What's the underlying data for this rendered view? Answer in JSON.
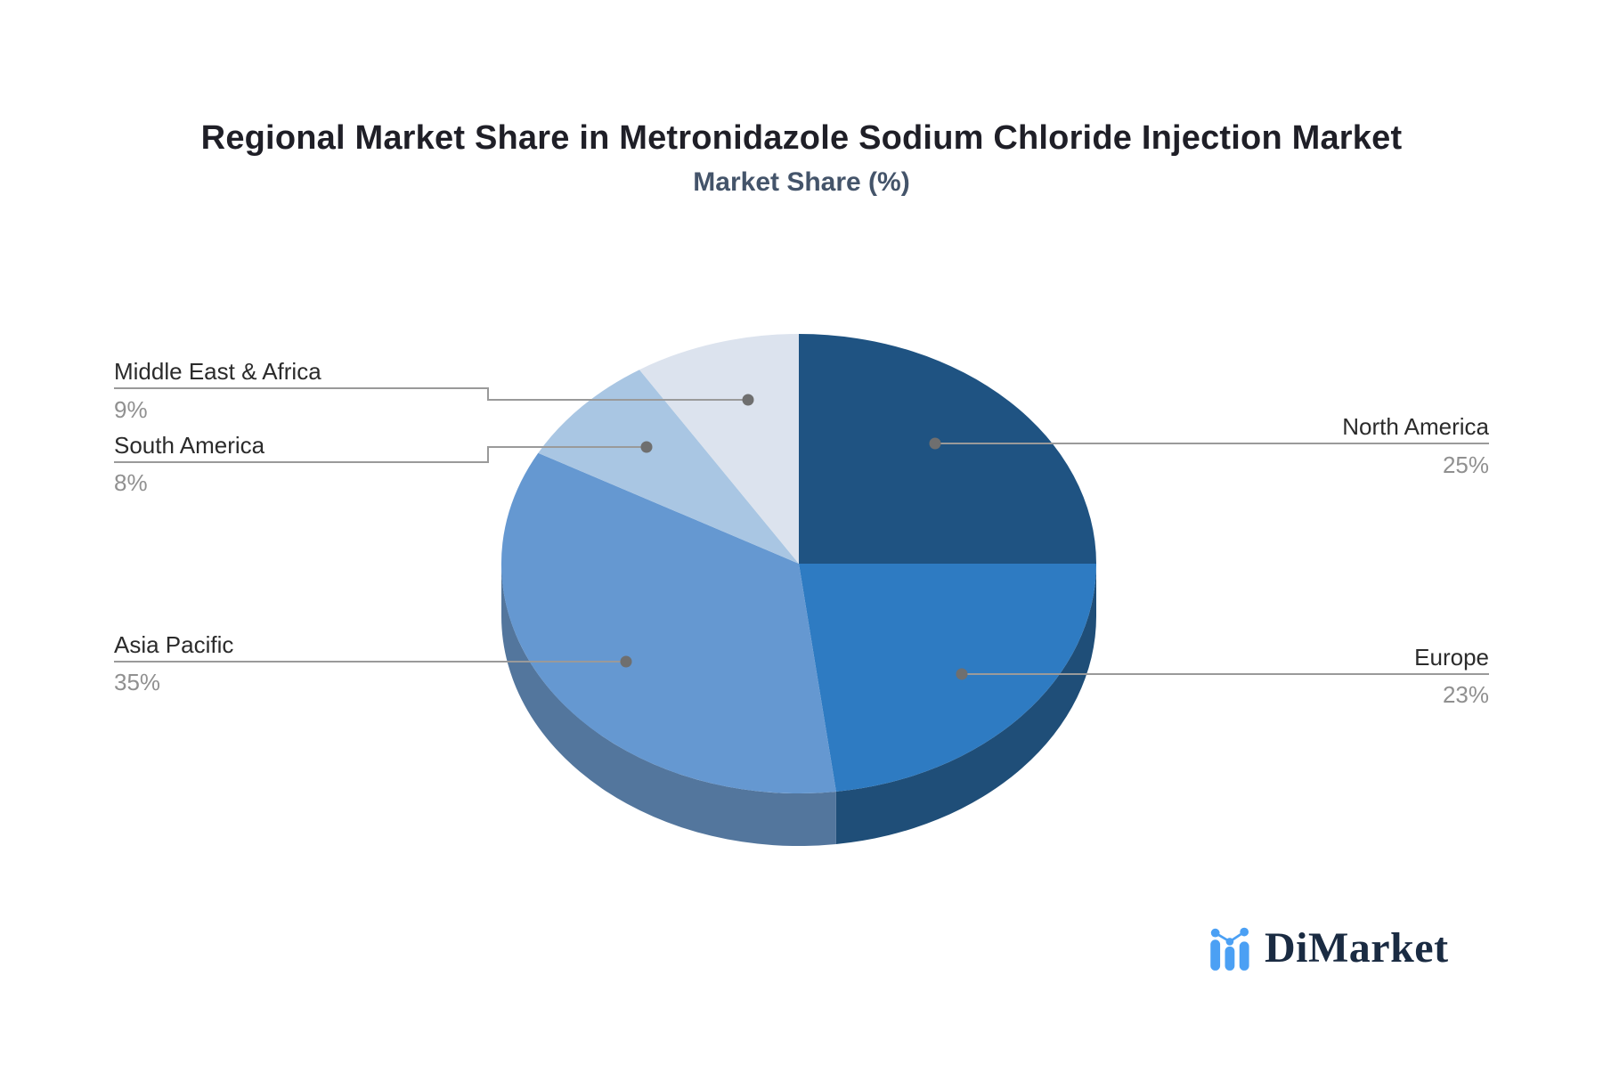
{
  "header": {
    "title": "Regional Market Share in Metronidazole Sodium Chloride Injection Market",
    "subtitle": "Market Share (%)"
  },
  "chart_data": {
    "type": "pie",
    "style": "3d",
    "direction": "clockwise",
    "start_angle_deg": 0,
    "unit": "%",
    "title": "Regional Market Share in Metronidazole Sodium Chloride Injection Market",
    "subtitle": "Market Share (%)",
    "slices": [
      {
        "label": "North America",
        "value": 25,
        "pct_label": "25%",
        "color": "#1F5382",
        "depth_color": null,
        "label_side": "right"
      },
      {
        "label": "Europe",
        "value": 23,
        "pct_label": "23%",
        "color": "#2E7BC2",
        "depth_color": "#1F4E78",
        "label_side": "right"
      },
      {
        "label": "Asia Pacific",
        "value": 35,
        "pct_label": "35%",
        "color": "#6598D1",
        "depth_color": "#53769D",
        "label_side": "left"
      },
      {
        "label": "South America",
        "value": 8,
        "pct_label": "8%",
        "color": "#A9C6E3",
        "depth_color": null,
        "label_side": "left"
      },
      {
        "label": "Middle East & Africa",
        "value": 9,
        "pct_label": "9%",
        "color": "#DCE3EE",
        "depth_color": null,
        "label_side": "left"
      }
    ],
    "legend_position": "callout-labels",
    "grid": false
  },
  "colors": {
    "background": "#FFFFFF",
    "title_text": "#1F1F27",
    "subtitle_text": "#44546A",
    "label_text": "#2B2B2B",
    "pct_text": "#909090",
    "leader_line": "#9A9A9A",
    "leader_dot": "#6F6F6F"
  },
  "logo": {
    "text": "DiMarket",
    "icon": "bar-line-chart-icon",
    "text_color": "#1A2B42",
    "icon_color": "#4BA0F4"
  }
}
